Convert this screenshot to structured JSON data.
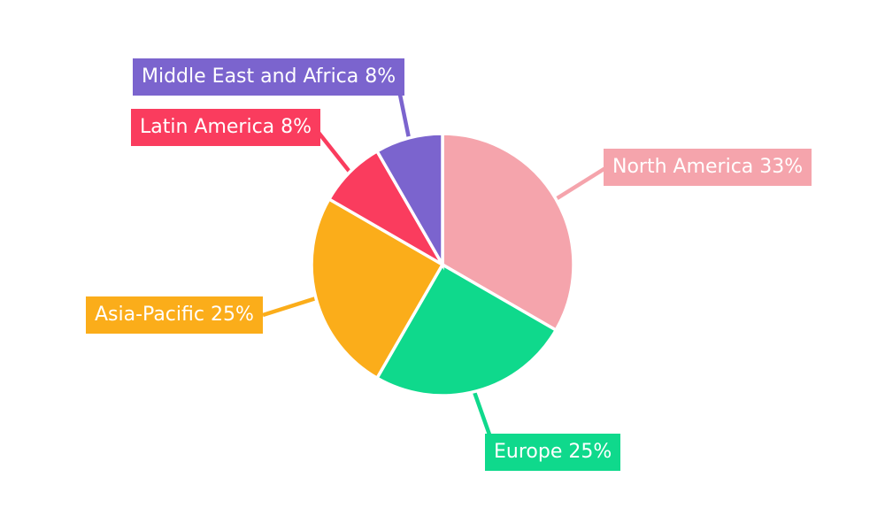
{
  "page": {
    "background": "#ffffff"
  },
  "chart_data": {
    "type": "pie",
    "title": "",
    "direction": "clockwise",
    "start_angle": "12-oclock",
    "legend": "none",
    "donut": false,
    "slices": [
      {
        "label": "North America",
        "percent_label": "33%",
        "value": 33.33,
        "display": "North America 33%",
        "color": "#f5a4ac"
      },
      {
        "label": "Europe",
        "percent_label": "25%",
        "value": 25,
        "display": "Europe 25%",
        "color": "#0fd98c"
      },
      {
        "label": "Asia-Pacific",
        "percent_label": "25%",
        "value": 25,
        "display": "Asia-Pacific 25%",
        "color": "#fbad1a"
      },
      {
        "label": "Latin America",
        "percent_label": "8%",
        "value": 8.33,
        "display": "Latin America 8%",
        "color": "#fa3c5e"
      },
      {
        "label": "Middle East and Africa",
        "percent_label": "8%",
        "value": 8.33,
        "display": "Middle East and Africa 8%",
        "color": "#7b64ce"
      }
    ],
    "label_text_color": "#ffffff",
    "slice_gap_color": "#ffffff"
  }
}
